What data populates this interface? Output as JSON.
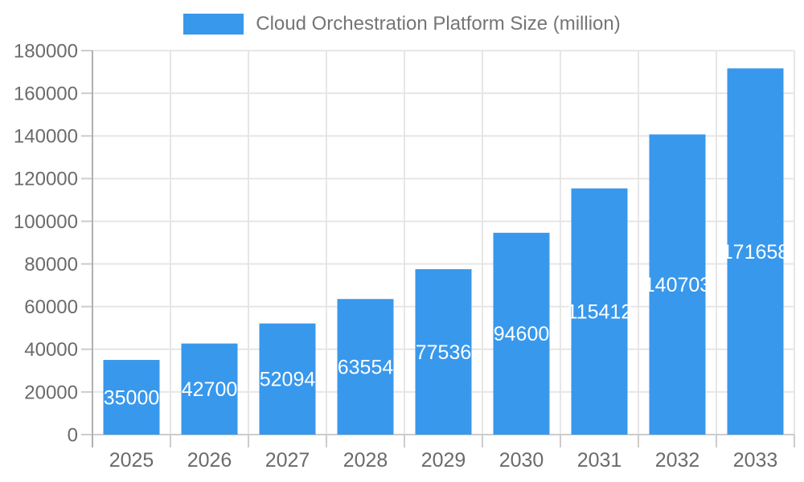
{
  "chart_data": {
    "type": "bar",
    "title": "",
    "legend": "Cloud Orchestration Platform Size (million)",
    "categories": [
      "2025",
      "2026",
      "2027",
      "2028",
      "2029",
      "2030",
      "2031",
      "2032",
      "2033"
    ],
    "values": [
      35000,
      42700,
      52094,
      63554,
      77536,
      94600,
      115412,
      140703,
      171658
    ],
    "bar_labels": [
      "35000",
      "42700",
      "52094",
      "63554",
      "77536",
      "94600",
      "115412",
      "140703",
      "171658"
    ],
    "xlabel": "",
    "ylabel": "",
    "ylim": [
      0,
      180000
    ],
    "ytick_step": 20000,
    "ytick_labels": [
      "0",
      "20000",
      "40000",
      "60000",
      "80000",
      "100000",
      "120000",
      "140000",
      "160000",
      "180000"
    ],
    "grid": true,
    "legend_position": "top-center",
    "colors": {
      "bar": "#3898ec",
      "bar_label_text": "#ffffff",
      "axis_text": "#6b6b6b",
      "legend_text": "#757575",
      "gridline": "#e6e6e6",
      "baseline": "#cccccc",
      "axis_line": "#b0b0b0",
      "tick_line": "#cccccc",
      "background": "#ffffff"
    }
  }
}
